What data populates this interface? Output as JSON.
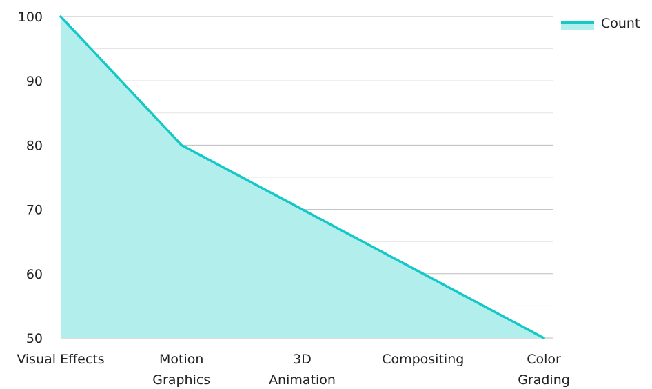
{
  "chart_data": {
    "type": "area",
    "title": "",
    "xlabel": "",
    "ylabel": "",
    "categories": [
      [
        "Visual Effects"
      ],
      [
        "Motion",
        "Graphics"
      ],
      [
        "3D",
        "Animation"
      ],
      [
        "Compositing"
      ],
      [
        "Color",
        "Grading"
      ]
    ],
    "series": [
      {
        "name": "Count",
        "values": [
          100,
          80,
          70,
          60,
          50
        ]
      }
    ],
    "ylim": [
      50,
      100
    ],
    "yticks": [
      50,
      60,
      70,
      80,
      90,
      100
    ],
    "grid": true,
    "legend_position": "top-right",
    "colors": {
      "line": "#14c8c8",
      "fill": "#b2efec",
      "grid_major": "#bdbdbd",
      "grid_minor": "#e3e3e3"
    }
  }
}
